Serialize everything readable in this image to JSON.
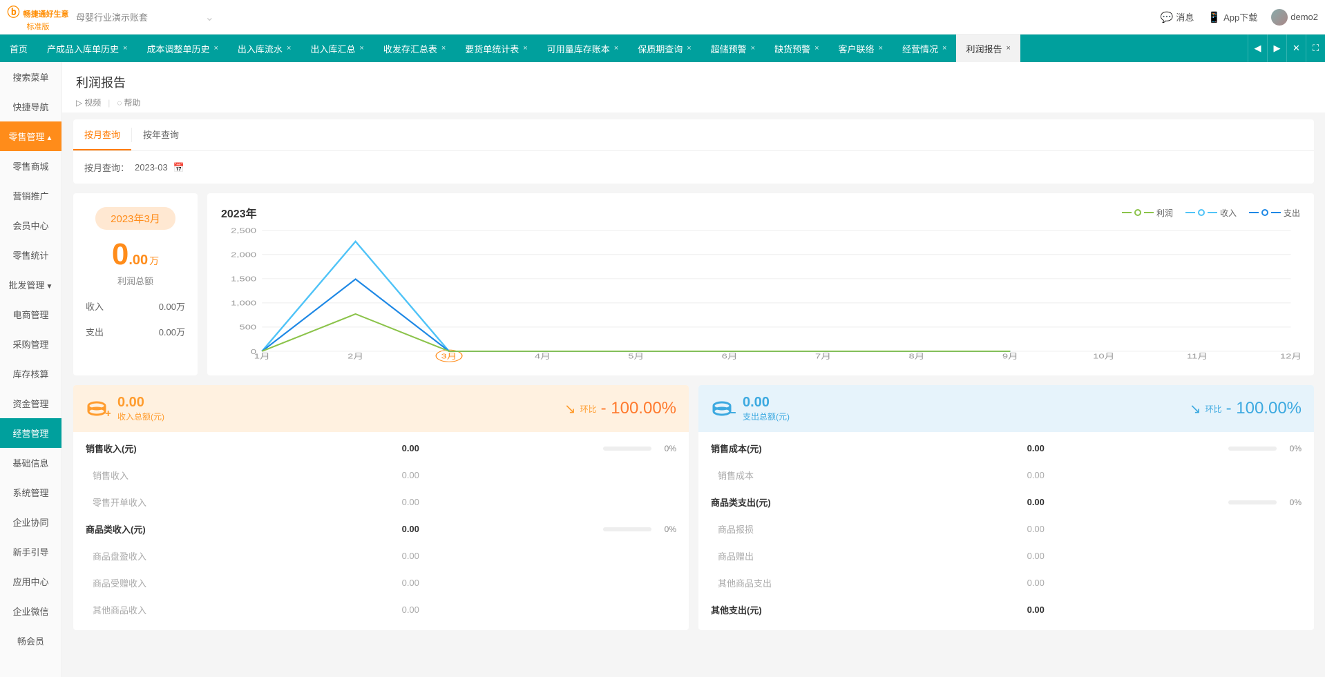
{
  "header": {
    "logo_text": "畅捷通好生意",
    "logo_sub": "标准版",
    "account_name": "母婴行业演示账套",
    "right": [
      {
        "icon": "💬",
        "label": "消息",
        "name": "messages"
      },
      {
        "icon": "📱",
        "label": "App下载",
        "name": "app-download"
      }
    ],
    "user": "demo2"
  },
  "tabs": [
    {
      "label": "首页",
      "closable": false
    },
    {
      "label": "产成品入库单历史",
      "closable": true
    },
    {
      "label": "成本调整单历史",
      "closable": true
    },
    {
      "label": "出入库流水",
      "closable": true
    },
    {
      "label": "出入库汇总",
      "closable": true
    },
    {
      "label": "收发存汇总表",
      "closable": true
    },
    {
      "label": "要货单统计表",
      "closable": true
    },
    {
      "label": "可用量库存账本",
      "closable": true
    },
    {
      "label": "保质期查询",
      "closable": true
    },
    {
      "label": "超储预警",
      "closable": true
    },
    {
      "label": "缺货预警",
      "closable": true
    },
    {
      "label": "客户联络",
      "closable": true
    },
    {
      "label": "经营情况",
      "closable": true
    },
    {
      "label": "利润报告",
      "closable": true,
      "active": true
    }
  ],
  "sidebar": [
    {
      "label": "搜索菜单"
    },
    {
      "label": "快捷导航"
    },
    {
      "label": "零售管理",
      "expandable": true,
      "active": "orange"
    },
    {
      "label": "零售商城",
      "sub": true
    },
    {
      "label": "营销推广",
      "sub": true
    },
    {
      "label": "会员中心",
      "sub": true
    },
    {
      "label": "零售统计",
      "sub": true
    },
    {
      "label": "批发管理",
      "expandable": true
    },
    {
      "label": "电商管理"
    },
    {
      "label": "采购管理"
    },
    {
      "label": "库存核算"
    },
    {
      "label": "资金管理"
    },
    {
      "label": "经营管理",
      "active": "teal"
    },
    {
      "label": "基础信息"
    },
    {
      "label": "系统管理"
    },
    {
      "label": "企业协同"
    },
    {
      "label": "新手引导"
    },
    {
      "label": "应用中心"
    },
    {
      "label": "企业微信"
    },
    {
      "label": "畅会员"
    }
  ],
  "page": {
    "title": "利润报告",
    "link_video": "视频",
    "link_help": "帮助",
    "query_tabs": [
      "按月查询",
      "按年查询"
    ],
    "query_active": 0,
    "query_label": "按月查询：",
    "query_value": "2023-03"
  },
  "summary": {
    "badge": "2023年3月",
    "big_int": "0",
    "big_dec": ".00",
    "big_unit": "万",
    "sub": "利润总额",
    "kv": [
      {
        "k": "收入",
        "v": "0.00万"
      },
      {
        "k": "支出",
        "v": "0.00万"
      }
    ]
  },
  "chart": {
    "title": "2023年",
    "legend": [
      {
        "label": "利润",
        "color": "#8bc34a"
      },
      {
        "label": "收入",
        "color": "#4fc3f7"
      },
      {
        "label": "支出",
        "color": "#1e88e5"
      }
    ],
    "ylim": [
      0,
      2500
    ],
    "ytick_step": 500,
    "yticks": [
      "0",
      "500",
      "1,000",
      "1,500",
      "2,000",
      "2,500"
    ],
    "xlabels": [
      "1月",
      "2月",
      "3月",
      "4月",
      "5月",
      "6月",
      "7月",
      "8月",
      "9月",
      "10月",
      "11月",
      "12月"
    ],
    "highlight_x": 2,
    "series": {
      "profit": [
        0,
        770,
        0,
        0,
        0,
        0,
        0,
        0,
        0,
        0,
        0,
        0
      ],
      "income": [
        0,
        2270,
        0,
        0,
        0,
        0,
        0,
        0,
        0,
        0,
        0,
        0
      ],
      "expense": [
        0,
        1490,
        0,
        0,
        0,
        0,
        0,
        0,
        0,
        0,
        0,
        0
      ]
    },
    "flatline_end": 8,
    "grid_color": "#eeeeee",
    "axis_color": "#cccccc",
    "label_color": "#999999",
    "label_fontsize": 11
  },
  "panels": {
    "income": {
      "title_amt": "0.00",
      "title_sub": "收入总额(元)",
      "delta_label": "环比",
      "delta_pct": "- 100.00%",
      "rows": [
        {
          "lbl": "销售收入(元)",
          "val": "0.00",
          "head": true,
          "bar": true,
          "pct": "0%"
        },
        {
          "lbl": "销售收入",
          "val": "0.00",
          "sub": true
        },
        {
          "lbl": "零售开单收入",
          "val": "0.00",
          "sub": true
        },
        {
          "lbl": "商品类收入(元)",
          "val": "0.00",
          "head": true,
          "bar": true,
          "pct": "0%"
        },
        {
          "lbl": "商品盘盈收入",
          "val": "0.00",
          "sub": true
        },
        {
          "lbl": "商品受赠收入",
          "val": "0.00",
          "sub": true
        },
        {
          "lbl": "其他商品收入",
          "val": "0.00",
          "sub": true
        }
      ]
    },
    "expense": {
      "title_amt": "0.00",
      "title_sub": "支出总额(元)",
      "delta_label": "环比",
      "delta_pct": "- 100.00%",
      "rows": [
        {
          "lbl": "销售成本(元)",
          "val": "0.00",
          "head": true,
          "bar": true,
          "pct": "0%"
        },
        {
          "lbl": "销售成本",
          "val": "0.00",
          "sub": true
        },
        {
          "lbl": "商品类支出(元)",
          "val": "0.00",
          "head": true,
          "bar": true,
          "pct": "0%"
        },
        {
          "lbl": "商品报损",
          "val": "0.00",
          "sub": true
        },
        {
          "lbl": "商品赠出",
          "val": "0.00",
          "sub": true
        },
        {
          "lbl": "其他商品支出",
          "val": "0.00",
          "sub": true
        },
        {
          "lbl": "其他支出(元)",
          "val": "0.00",
          "head": true
        }
      ]
    }
  }
}
